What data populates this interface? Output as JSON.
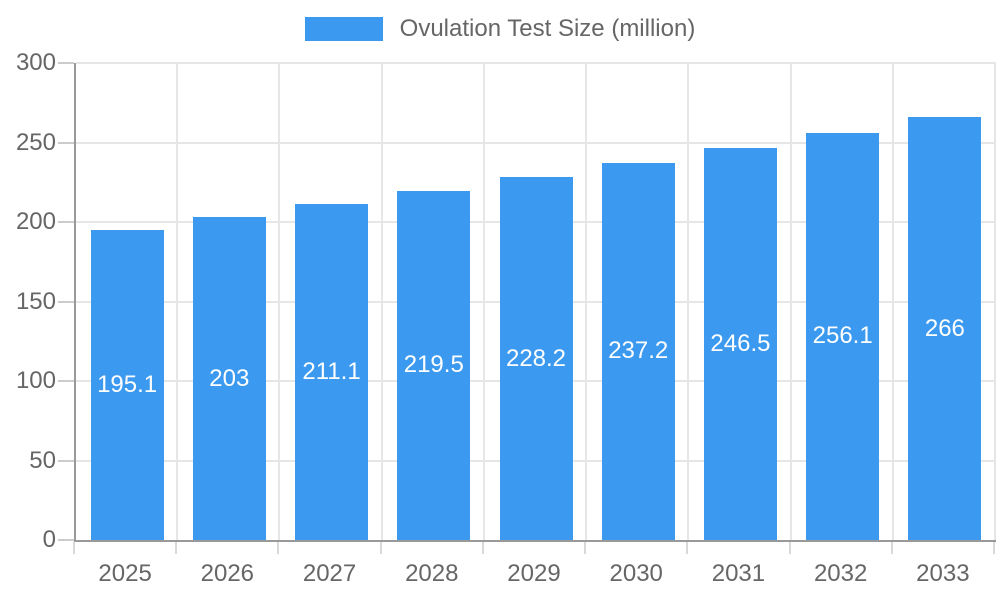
{
  "chart_data": {
    "type": "bar",
    "title": "Ovulation Test Size (million)",
    "categories": [
      "2025",
      "2026",
      "2027",
      "2028",
      "2029",
      "2030",
      "2031",
      "2032",
      "2033"
    ],
    "values": [
      195.1,
      203,
      211.1,
      219.5,
      228.2,
      237.2,
      246.5,
      256.1,
      266
    ],
    "xlabel": "",
    "ylabel": "",
    "ylim": [
      0,
      300
    ],
    "yticks": [
      0,
      50,
      100,
      150,
      200,
      250,
      300
    ],
    "grid": true,
    "legend_position": "top",
    "colors": {
      "bar": "#3b99f0",
      "bar_value_text": "#ffffff",
      "tick_text": "#666666",
      "legend_text": "#666666",
      "gridline": "#e6e6e6",
      "axis_border": "#999999"
    }
  }
}
